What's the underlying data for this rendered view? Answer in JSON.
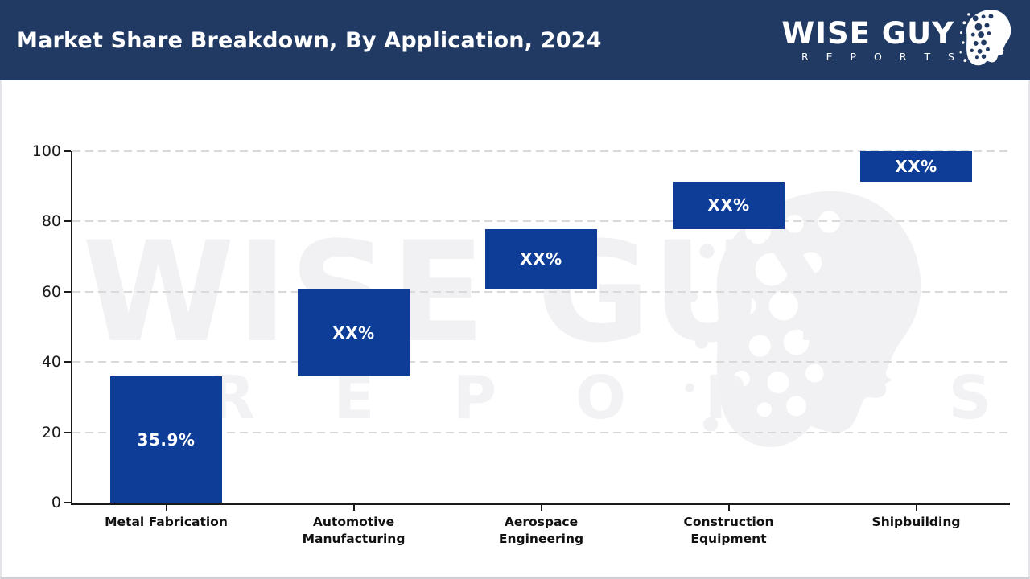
{
  "header": {
    "title": "Market Share Breakdown, By Application, 2024",
    "logo": {
      "brand": "WISE GUY",
      "sub": "R E P O R T S",
      "icon": "wiseguy-face-icon"
    }
  },
  "watermark": {
    "brand": "WISE GUY",
    "sub": "R E P O R T S",
    "icon": "wiseguy-face-icon"
  },
  "theme": {
    "header_bg": "#213a64",
    "bar_color": "#0d3d97",
    "grid_color": "#d9d9d9",
    "axis_color": "#1a1a1a",
    "value_label_color": "#ffffff",
    "watermark_color": "#f1f1f4"
  },
  "chart_data": {
    "type": "bar",
    "subtype": "waterfall",
    "title": "Market Share Breakdown, By Application, 2024",
    "categories": [
      "Metal Fabrication",
      "Automotive\nManufacturing",
      "Aerospace\nEngineering",
      "Construction\nEquipment",
      "Shipbuilding"
    ],
    "segments": [
      {
        "label": "35.9%",
        "start": 0,
        "end": 35.9
      },
      {
        "label": "XX%",
        "start": 35.9,
        "end": 60.6
      },
      {
        "label": "XX%",
        "start": 60.6,
        "end": 77.9
      },
      {
        "label": "XX%",
        "start": 77.9,
        "end": 91.4
      },
      {
        "label": "XX%",
        "start": 91.4,
        "end": 100
      }
    ],
    "yticks": [
      0,
      20,
      40,
      60,
      80,
      100
    ],
    "ylim": [
      0,
      100
    ],
    "grid": "dashed-horizontal",
    "legend": false,
    "xlabel": "",
    "ylabel": ""
  }
}
